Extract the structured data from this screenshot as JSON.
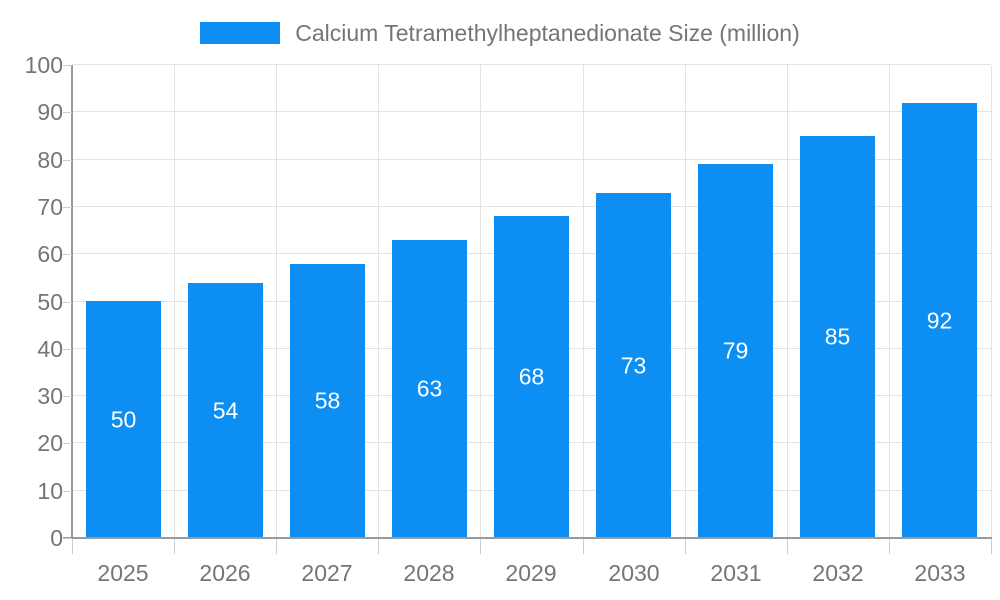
{
  "chart_data": {
    "type": "bar",
    "legend": "Calcium Tetramethylheptanedionate Size (million)",
    "legend_position": "top",
    "categories": [
      "2025",
      "2026",
      "2027",
      "2028",
      "2029",
      "2030",
      "2031",
      "2032",
      "2033"
    ],
    "values": [
      50,
      54,
      58,
      63,
      68,
      73,
      79,
      85,
      92
    ],
    "title": "",
    "xlabel": "",
    "ylabel": "",
    "ylim": [
      0,
      100
    ],
    "ytick_step": 10,
    "grid": true,
    "bar_labels_shown": true
  },
  "colors": {
    "bar": "#0D8EF2",
    "grid_line": "#E3E3E3",
    "axis_line": "#999999",
    "tick": "#CCCCCC",
    "tick_label": "#757575",
    "bar_label": "#FFFFFF",
    "background": "#FFFFFF"
  }
}
